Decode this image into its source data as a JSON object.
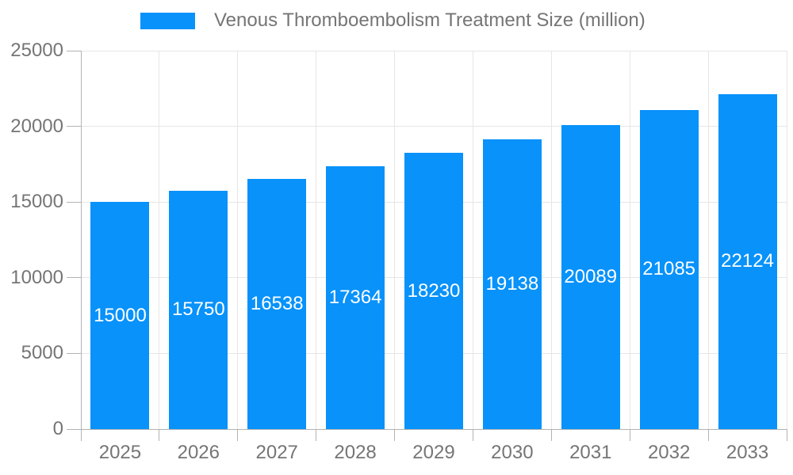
{
  "legend": {
    "label": "Venous Thromboembolism Treatment Size (million)"
  },
  "chart_data": {
    "type": "bar",
    "title": "Venous Thromboembolism Treatment Size (million)",
    "categories": [
      "2025",
      "2026",
      "2027",
      "2028",
      "2029",
      "2030",
      "2031",
      "2032",
      "2033"
    ],
    "values": [
      15000,
      15750,
      16538,
      17364,
      18230,
      19138,
      20089,
      21085,
      22124
    ],
    "xlabel": "",
    "ylabel": "",
    "ylim": [
      0,
      25000
    ],
    "yticks": [
      0,
      5000,
      10000,
      15000,
      20000,
      25000
    ],
    "grid": true,
    "legend_position": "top",
    "colors": {
      "bar": "#0892fa",
      "bar_label": "#ffffff",
      "axis_text": "#757575",
      "gridline": "#e6e6e6",
      "axis_line": "#b3b3b3",
      "background": "#ffffff"
    }
  }
}
